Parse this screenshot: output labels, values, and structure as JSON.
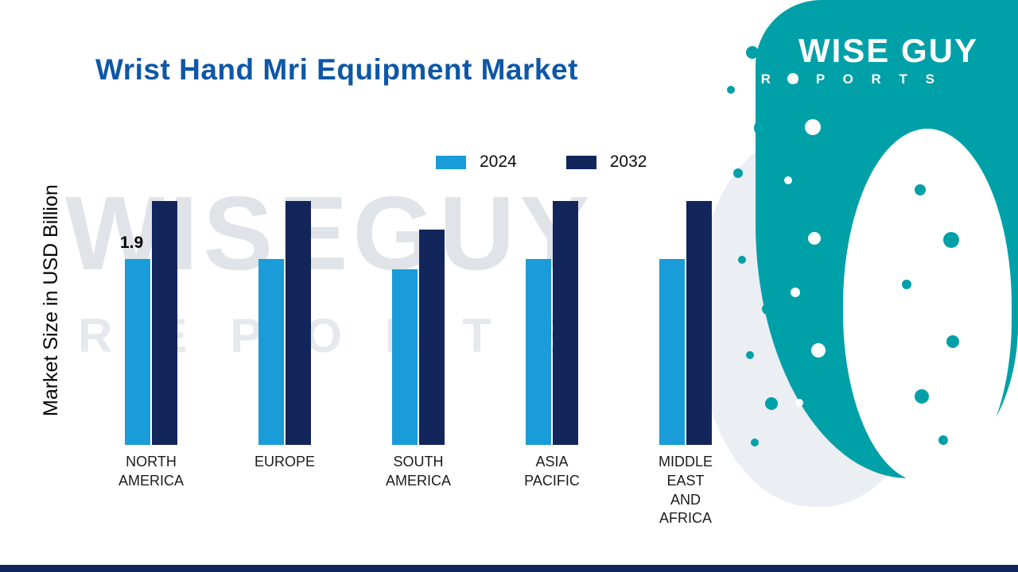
{
  "title": "Wrist Hand Mri Equipment Market",
  "watermark": {
    "line1": "WISEGUY",
    "line2": "REPORTS"
  },
  "logo": {
    "line1": "WISE GUY",
    "line2": "R E P O R T S"
  },
  "colors": {
    "title": "#0d57a6",
    "series_2024": "#199cd8",
    "series_2032": "#13265b",
    "logo_bg": "#00a0a8",
    "footer": "#13265b",
    "watermark": "#c2cad4"
  },
  "chart_data": {
    "type": "bar",
    "title": "Wrist Hand Mri Equipment Market",
    "ylabel": "Market Size in USD Billion",
    "xlabel": "",
    "ylim": [
      0,
      2.8
    ],
    "grid": false,
    "legend_position": "top",
    "categories": [
      "NORTH\nAMERICA",
      "EUROPE",
      "SOUTH\nAMERICA",
      "ASIA\nPACIFIC",
      "MIDDLE\nEAST\nAND\nAFRICA"
    ],
    "series": [
      {
        "name": "2024",
        "color": "#199cd8",
        "values": [
          1.9,
          1.9,
          1.8,
          1.9,
          1.9
        ]
      },
      {
        "name": "2032",
        "color": "#13265b",
        "values": [
          2.5,
          2.5,
          2.2,
          2.5,
          2.5
        ]
      }
    ],
    "data_labels": [
      {
        "series": 0,
        "index": 0,
        "text": "1.9"
      }
    ]
  }
}
